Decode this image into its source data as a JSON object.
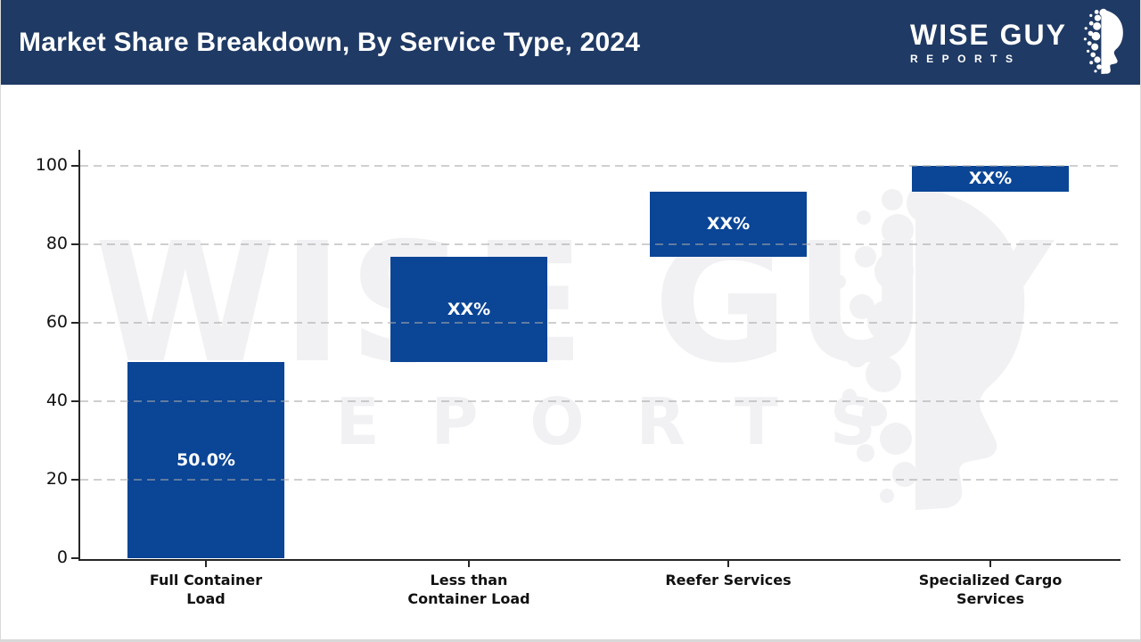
{
  "header": {
    "title": "Market Share Breakdown, By Service Type, 2024",
    "bg_color": "#1f3a64",
    "logo": {
      "line1": "WISE GUY",
      "line2": "REPORTS"
    }
  },
  "watermark": {
    "line1": "WISE GUY",
    "line2": "REPORTS"
  },
  "chart_data": {
    "type": "bar",
    "subtype": "waterfall",
    "title": "Market Share Breakdown, By Service Type, 2024",
    "xlabel": "",
    "ylabel": "",
    "bar_color": "#0a4596",
    "grid": "dashed-horizontal",
    "ylim": [
      0,
      105
    ],
    "y_ticks": [
      0,
      20,
      40,
      60,
      80,
      100
    ],
    "categories": [
      "Full Container Load",
      "Less than Container Load",
      "Reefer Services",
      "Specialized Cargo Services"
    ],
    "categories_lines": [
      [
        "Full Container",
        "Load"
      ],
      [
        "Less than",
        "Container Load"
      ],
      [
        "Reefer Services"
      ],
      [
        "Specialized Cargo",
        "Services"
      ]
    ],
    "segments": [
      {
        "category": "Full Container Load",
        "start": 0,
        "end": 50,
        "display": "50.0%"
      },
      {
        "category": "Less than Container Load",
        "start": 50,
        "end": 76.8,
        "display": "XX%"
      },
      {
        "category": "Reefer Services",
        "start": 76.8,
        "end": 93.5,
        "display": "XX%"
      },
      {
        "category": "Specialized Cargo Services",
        "start": 93.5,
        "end": 100,
        "display": "XX%"
      }
    ]
  }
}
